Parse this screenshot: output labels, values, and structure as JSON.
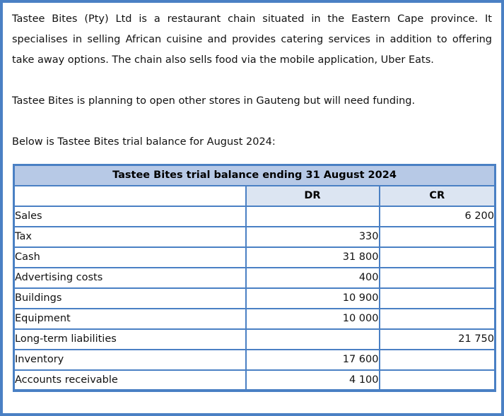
{
  "document": {
    "paragraphs": [
      "Tastee Bites (Pty) Ltd is a restaurant chain situated in the Eastern Cape province. It specialises in selling African cuisine and provides catering services in addition to offering take away options. The chain also sells food via the mobile application, Uber Eats.",
      "Tastee Bites is planning to open other stores in Gauteng but will need funding.",
      "Below is Tastee Bites trial balance for August 2024:"
    ]
  },
  "table": {
    "title": "Tastee Bites trial balance ending 31 August 2024",
    "columns": {
      "dr": "DR",
      "cr": "CR"
    },
    "rows": [
      {
        "label": "Sales",
        "dr": "",
        "cr": "6 200"
      },
      {
        "label": "Tax",
        "dr": "330",
        "cr": ""
      },
      {
        "label": "Cash",
        "dr": "31 800",
        "cr": ""
      },
      {
        "label": "Advertising costs",
        "dr": "400",
        "cr": ""
      },
      {
        "label": "Buildings",
        "dr": "10 900",
        "cr": ""
      },
      {
        "label": "Equipment",
        "dr": "10 000",
        "cr": ""
      },
      {
        "label": "Long-term liabilities",
        "dr": "",
        "cr": "21 750"
      },
      {
        "label": "Inventory",
        "dr": "17 600",
        "cr": ""
      },
      {
        "label": "Accounts receivable",
        "dr": "4 100",
        "cr": ""
      }
    ]
  },
  "colors": {
    "page_border": "#4a80c4",
    "table_border": "#4a80c4",
    "table_title_background": "#b7c9e6",
    "table_header_background": "#dce5f2",
    "text": "#111111"
  }
}
